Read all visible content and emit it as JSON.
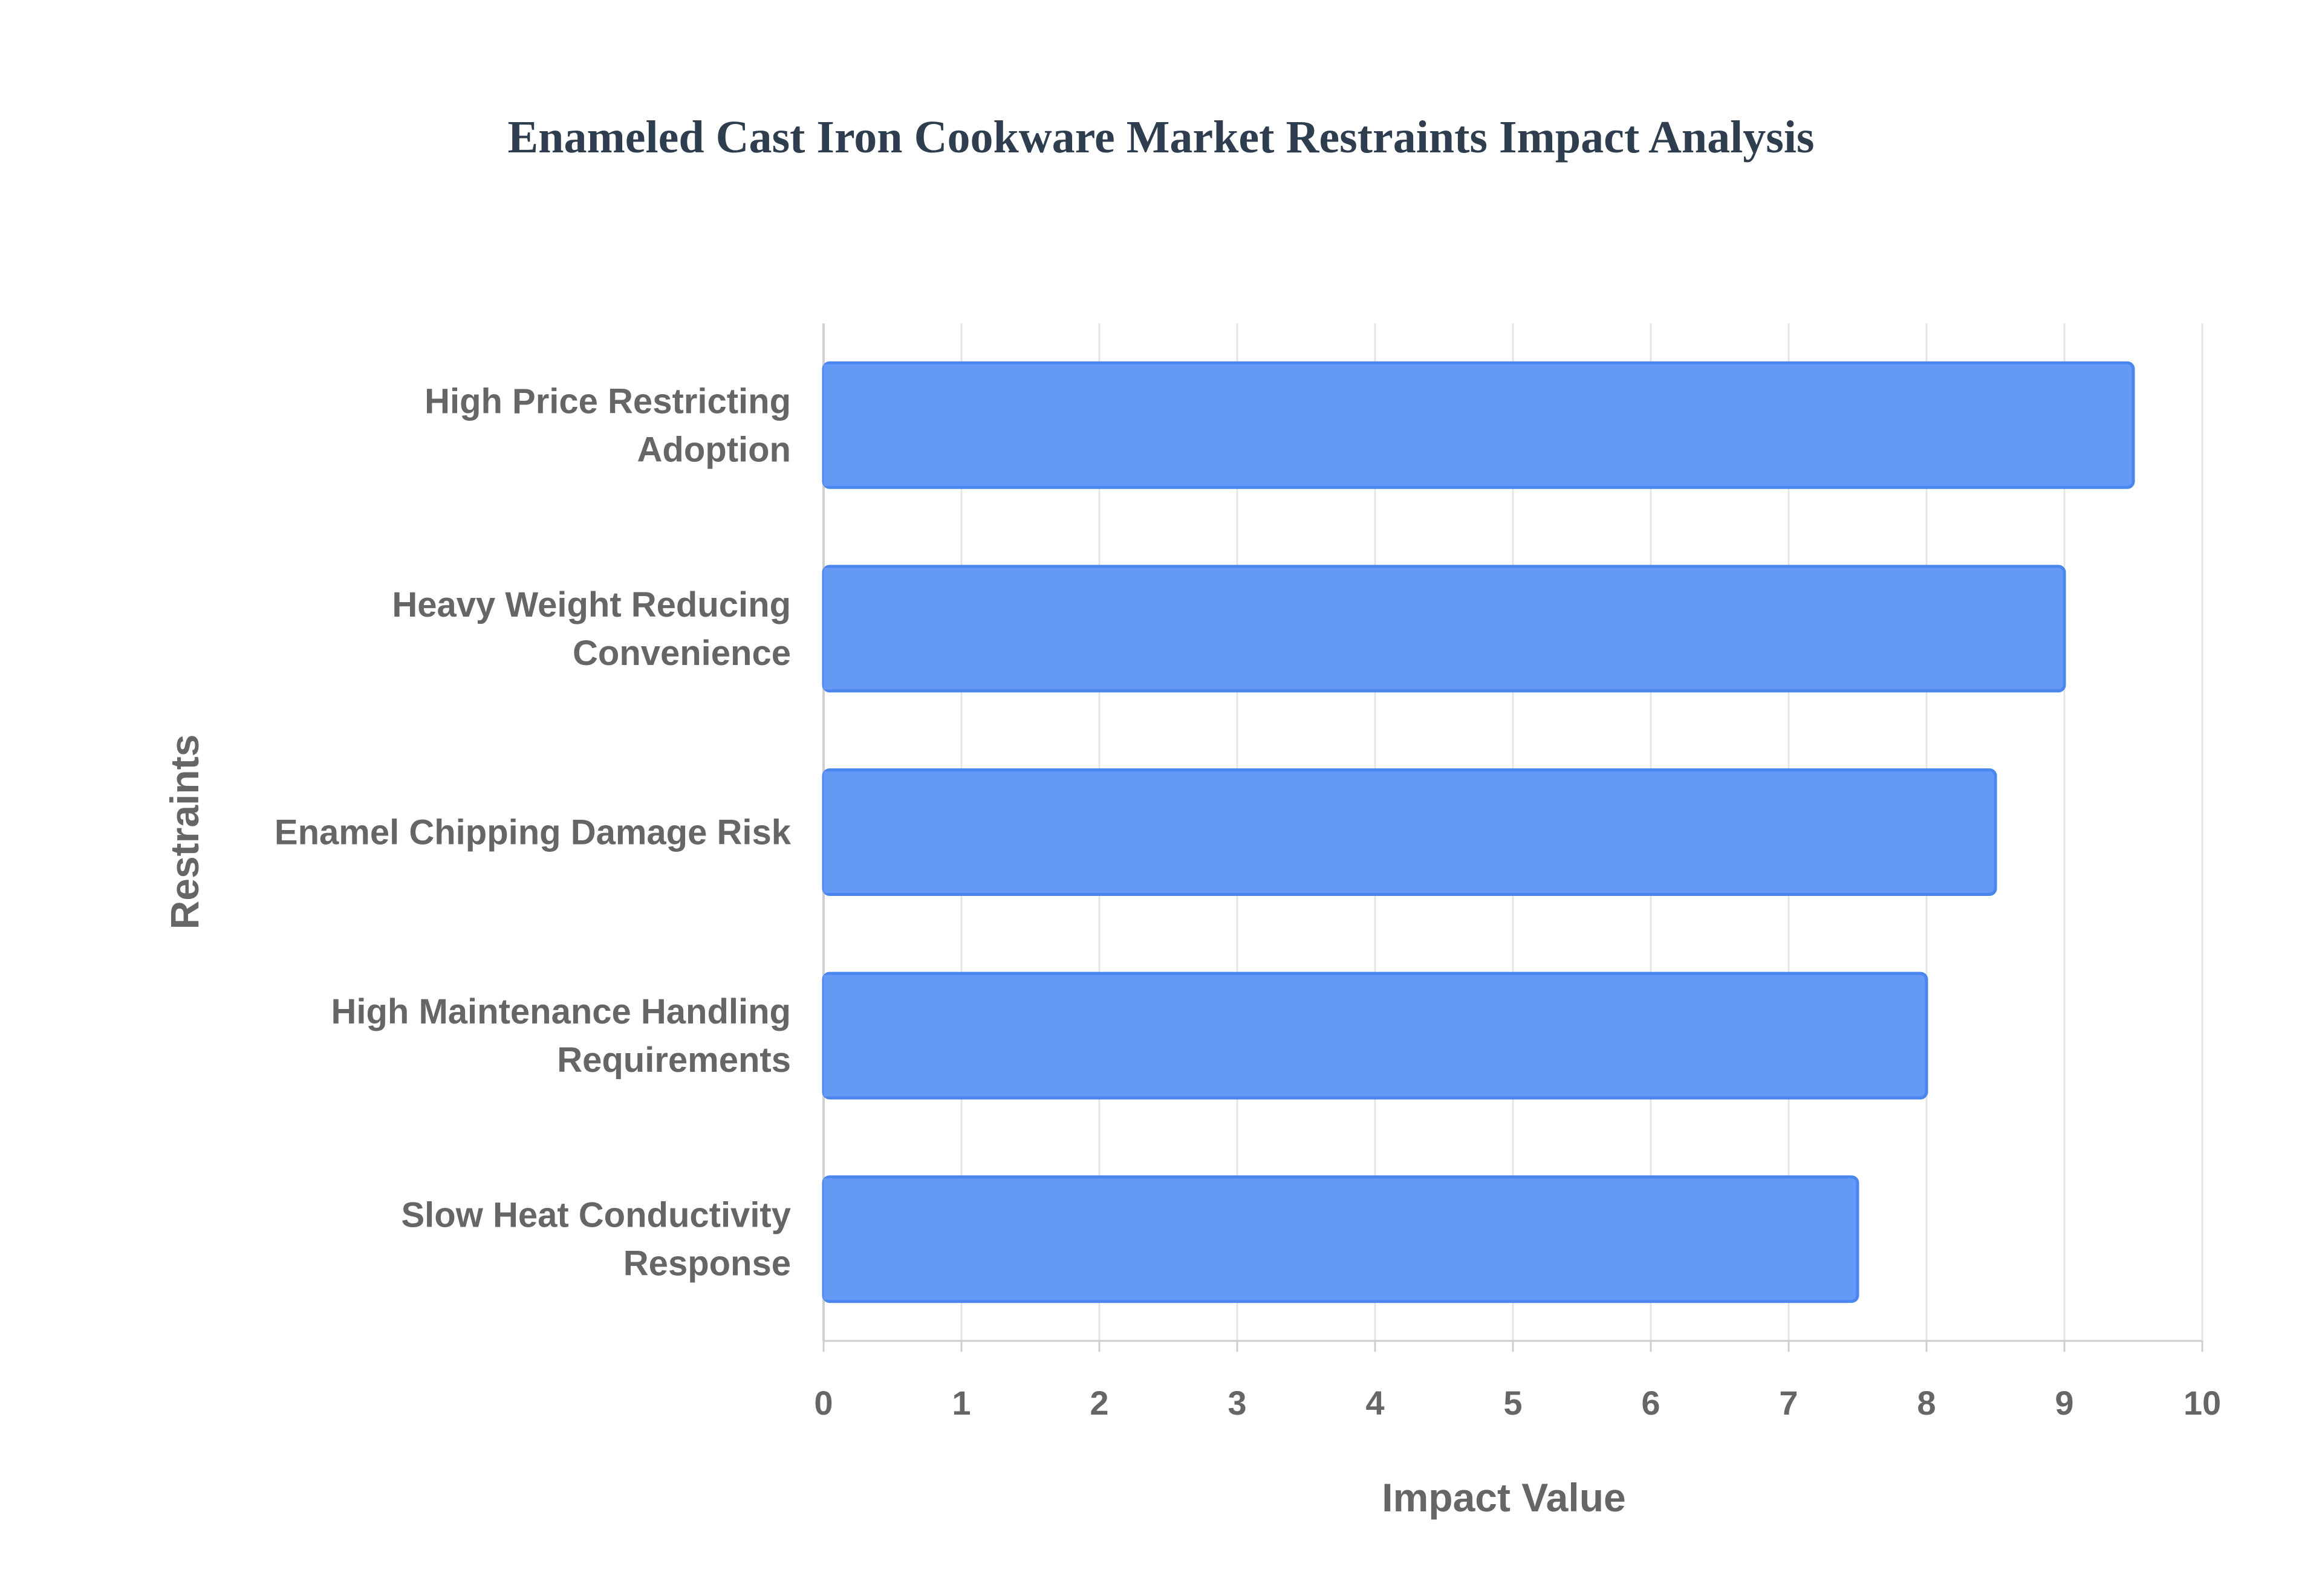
{
  "chart_data": {
    "type": "bar",
    "orientation": "horizontal",
    "title": "Enameled Cast Iron Cookware Market Restraints Impact Analysis",
    "xlabel": "Impact Value",
    "ylabel": "Restraints",
    "xlim": [
      0,
      10
    ],
    "xticks": [
      "0",
      "1",
      "2",
      "3",
      "4",
      "5",
      "6",
      "7",
      "8",
      "9",
      "10"
    ],
    "grid": true,
    "legend": "none",
    "categories": [
      [
        "High Price Restricting",
        "Adoption"
      ],
      [
        "Heavy Weight Reducing",
        "Convenience"
      ],
      [
        "Enamel Chipping Damage Risk"
      ],
      [
        "High Maintenance Handling",
        "Requirements"
      ],
      [
        "Slow Heat Conductivity",
        "Response"
      ]
    ],
    "values": [
      9.5,
      9.0,
      8.5,
      8.0,
      7.5
    ],
    "colors": {
      "bar_fill": "#6499f5",
      "bar_stroke": "#4a86ee",
      "grid": "#e5e5e5",
      "axis": "#cfcfcf",
      "title": "#2f3e4e",
      "labels": "#666666"
    }
  }
}
